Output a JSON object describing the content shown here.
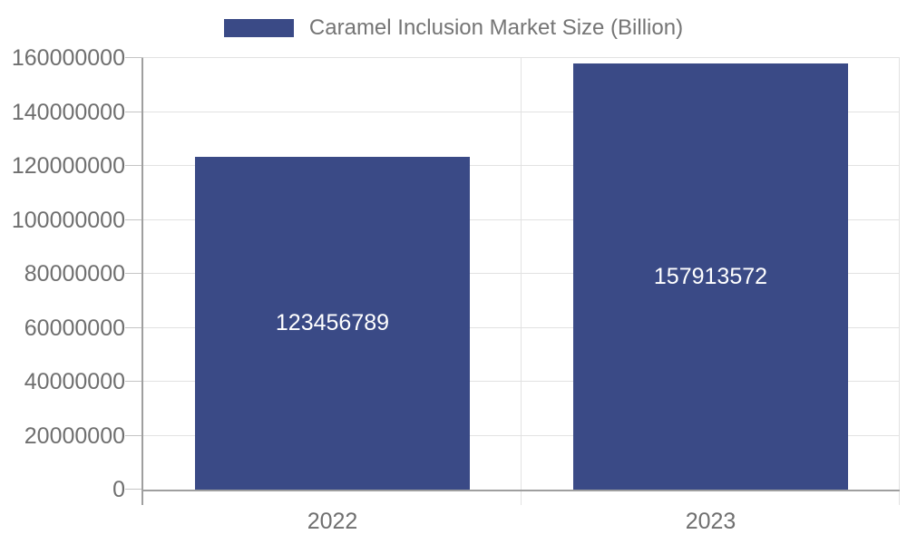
{
  "legend": {
    "label": "Caramel Inclusion Market Size (Billion)"
  },
  "chart_data": {
    "type": "bar",
    "title": "Caramel Inclusion Market Size (Billion)",
    "categories": [
      "2022",
      "2023"
    ],
    "values": [
      123456789,
      157913572
    ],
    "bar_labels": [
      "123456789",
      "157913572"
    ],
    "y_tick_labels": [
      "0",
      "20000000",
      "40000000",
      "60000000",
      "80000000",
      "100000000",
      "120000000",
      "140000000",
      "160000000"
    ],
    "y_ticks": [
      0,
      20000000,
      40000000,
      60000000,
      80000000,
      100000000,
      120000000,
      140000000,
      160000000
    ],
    "ylim": [
      0,
      160000000
    ],
    "xlabel": "",
    "ylabel": "",
    "grid": true,
    "legend_position": "top-center",
    "colors": {
      "bar": "#3A4A86",
      "bar_label_text": "#FFFFFF",
      "grid_line": "#E2E2E2",
      "axis_line": "#9F9F9F",
      "tick_line": "#C4C4C4",
      "tick_text": "#6F6F6F",
      "legend_text": "#757575",
      "background": "#FFFFFF"
    }
  }
}
